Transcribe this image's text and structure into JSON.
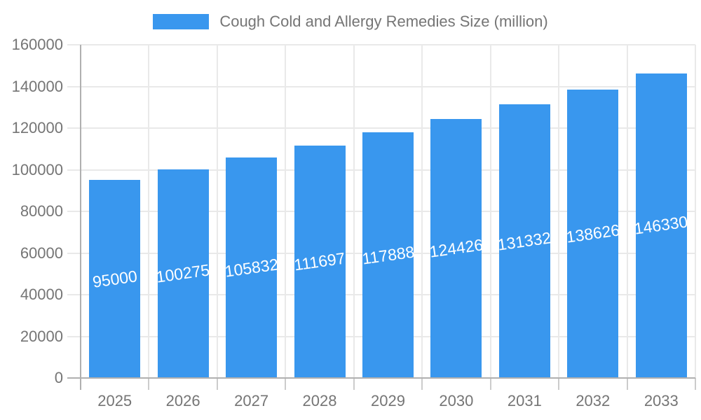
{
  "chart_data": {
    "type": "bar",
    "title": "Cough Cold and Allergy Remedies Size (million)",
    "categories": [
      "2025",
      "2026",
      "2027",
      "2028",
      "2029",
      "2030",
      "2031",
      "2032",
      "2033"
    ],
    "values": [
      95000,
      100275,
      105832,
      111697,
      117888,
      124426,
      131332,
      138626,
      146330
    ],
    "xlabel": "",
    "ylabel": "",
    "ylim": [
      0,
      160000
    ],
    "ytick_step": 20000,
    "grid": true,
    "legend_position": "top",
    "colors": {
      "bar": "#3997ee",
      "text": "#757575",
      "value_label": "#ffffff",
      "gridline": "#e9e9e9",
      "axis": "#b0b0b0"
    }
  }
}
